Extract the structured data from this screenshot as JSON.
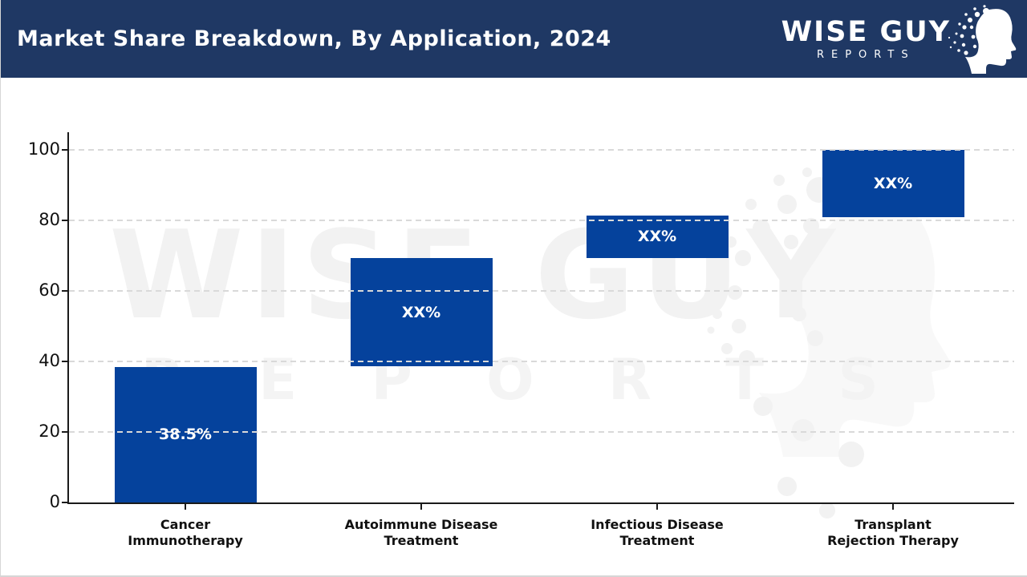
{
  "header": {
    "title": "Market Share Breakdown, By Application, 2024",
    "bg_color": "#1f3864",
    "logo": {
      "line1": "WISE GUY",
      "line2": "REPORTS",
      "icon": "dotted-head-profile-icon"
    }
  },
  "watermark": {
    "line1": "WISE GUY",
    "line2": "R E P O R T S",
    "icon": "dotted-head-profile-watermark"
  },
  "chart_data": {
    "type": "bar",
    "subtype": "waterfall-floating-bars",
    "title": "Market Share Breakdown, By Application, 2024",
    "xlabel": "",
    "ylabel": "",
    "ylim": [
      0,
      105
    ],
    "yticks": [
      0,
      20,
      40,
      60,
      80,
      100
    ],
    "grid": true,
    "grid_style": "dashed",
    "grid_color": "#d9d9d9",
    "grid_over_bars": true,
    "bar_color": "#05429c",
    "legend": "none",
    "categories": [
      "Cancer Immunotherapy",
      "Autoimmune Disease Treatment",
      "Infectious Disease Treatment",
      "Transplant Rejection Therapy"
    ],
    "bars": [
      {
        "label_lines": [
          "Cancer",
          "Immunotherapy"
        ],
        "start": 0,
        "end": 38.5,
        "value_label": "38.5%"
      },
      {
        "label_lines": [
          "Autoimmune Disease",
          "Treatment"
        ],
        "start": 38.6,
        "end": 69.3,
        "value_label": "XX%"
      },
      {
        "label_lines": [
          "Infectious Disease",
          "Treatment"
        ],
        "start": 69.3,
        "end": 81.4,
        "value_label": "XX%"
      },
      {
        "label_lines": [
          "Transplant",
          "Rejection Therapy"
        ],
        "start": 81.0,
        "end": 100.0,
        "value_label": "XX%"
      }
    ]
  }
}
